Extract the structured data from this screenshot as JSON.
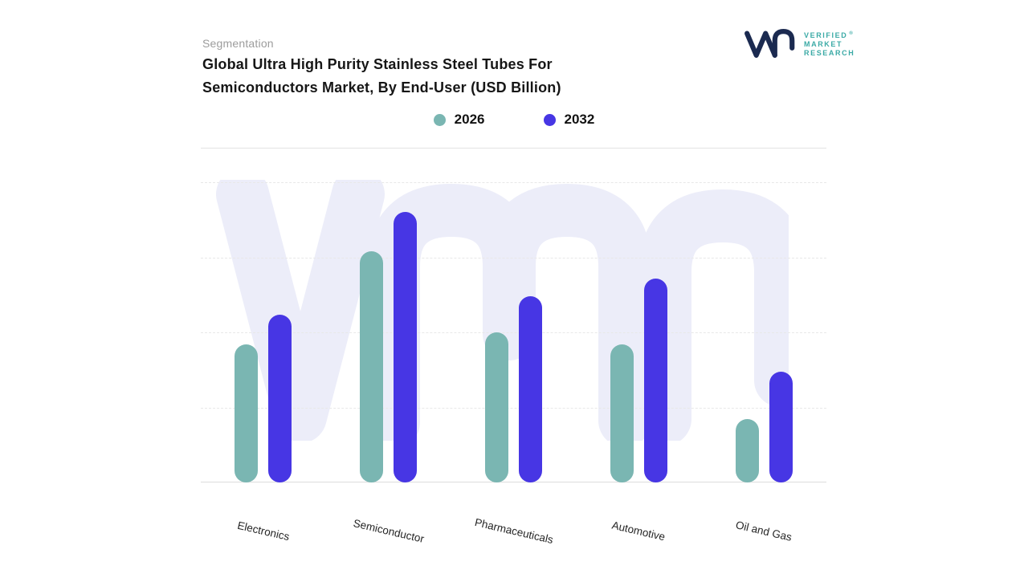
{
  "brand": {
    "lines": [
      "VERIFIED",
      "MARKET",
      "RESEARCH"
    ],
    "registered": "®"
  },
  "header": {
    "eyebrow": "Segmentation",
    "title_line1": "Global Ultra High Purity Stainless Steel Tubes For",
    "title_line2": "Semiconductors Market, By End-User (USD Billion)"
  },
  "chart_data": {
    "type": "bar",
    "title": "Global Ultra High Purity Stainless Steel Tubes For Semiconductors Market, By End-User (USD Billion)",
    "categories": [
      "Electronics",
      "Semiconductor",
      "Pharmaceuticals",
      "Automotive",
      "Oil and Gas"
    ],
    "series": [
      {
        "name": "2026",
        "color": "#7AB6B2",
        "values": [
          4.6,
          7.7,
          5.0,
          4.6,
          2.1
        ]
      },
      {
        "name": "2032",
        "color": "#4736E4",
        "values": [
          5.6,
          9.0,
          6.2,
          6.8,
          3.7
        ]
      }
    ],
    "xlabel": "",
    "ylabel": "",
    "ylim": [
      0,
      10
    ],
    "grid": true,
    "legend_position": "top",
    "colors": {
      "watermark": "#ECEDF9",
      "grid": "#E8E8E8",
      "axis": "#DCDCDC",
      "logo_navy": "#1B2A50",
      "logo_teal": "#3BAAA6"
    }
  }
}
